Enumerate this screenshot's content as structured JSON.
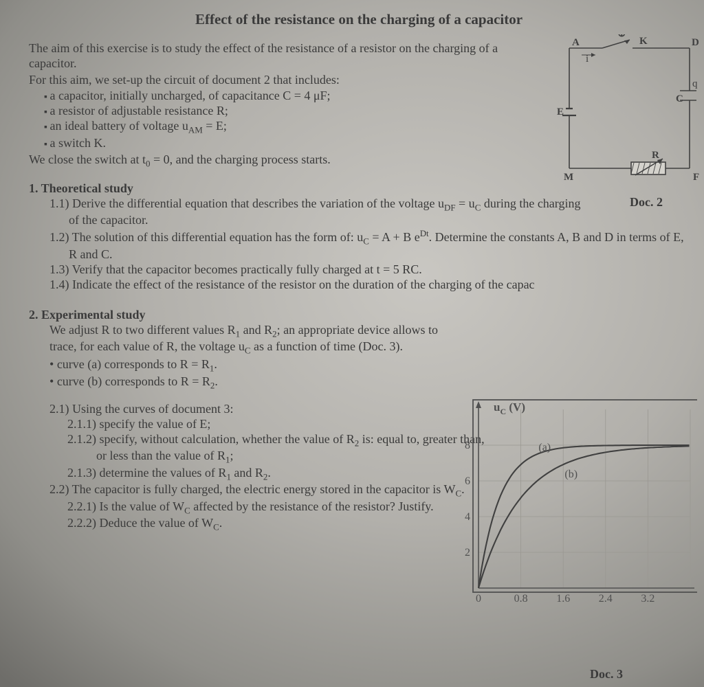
{
  "title": "Effect of the resistance on the charging of a capacitor",
  "intro_line1": "The aim of this exercise is to study the effect of the resistance of a resistor on the charging of a capacitor.",
  "intro_line2": "For this aim, we set-up the circuit of document 2 that includes:",
  "bullets": {
    "b1": "a capacitor, initially uncharged, of capacitance C = 4 μF;",
    "b2": "a resistor of adjustable resistance R;",
    "b3_pre": "an ideal battery of voltage u",
    "b3_sub": "AM",
    "b3_post": " = E;",
    "b4": "a switch K."
  },
  "close_pre": "We close the switch at t",
  "close_sub": "0",
  "close_post": " = 0, and the charging process starts.",
  "s1": {
    "head": "1.  Theoretical study",
    "i1_pre": "1.1)  Derive the differential equation that describes the variation of the voltage u",
    "i1_sub1": "DF",
    "i1_mid": " = u",
    "i1_sub2": "C",
    "i1_post": " during the charging of the capacitor.",
    "i2_pre": "1.2)  The solution of this differential equation has the form of: u",
    "i2_sub": "C",
    "i2_mid": " = A + B e",
    "i2_sup": "Dt",
    "i2_post": ". Determine the constants A, B and D in terms of E, R and C.",
    "i3": "1.3)  Verify that the capacitor becomes practically fully charged at t = 5 RC.",
    "i4": "1.4)  Indicate the effect of the resistance of the resistor on the duration of the charging of the capac"
  },
  "s2": {
    "head": "2.  Experimental study",
    "p1_pre": "We adjust R to two different values R",
    "p1_s1": "1",
    "p1_mid1": " and R",
    "p1_s2": "2",
    "p1_mid2": "; an appropriate device allows to trace, for each value of R, the voltage u",
    "p1_s3": "C",
    "p1_post": " as a function of time (Doc. 3).",
    "ca_pre": "curve (a) corresponds to R = R",
    "ca_sub": "1",
    "cb_pre": "curve (b) corresponds to R = R",
    "cb_sub": "2",
    "q21": "2.1) Using the curves of document 3:",
    "q211": "2.1.1)  specify the value of E;",
    "q212_pre": "2.1.2)  specify, without calculation, whether the value of R",
    "q212_s1": "2",
    "q212_mid": " is: equal to, greater than, or less than the value of R",
    "q212_s2": "1",
    "q212_post": ";",
    "q213_pre": "2.1.3)  determine the values of R",
    "q213_s1": "1",
    "q213_mid": " and R",
    "q213_s2": "2",
    "q213_post": ".",
    "q22_pre": "2.2)  The capacitor is fully charged, the electric energy stored in the capacitor is W",
    "q22_sub": "C",
    "q22_post": ".",
    "q221_pre": "2.2.1)  Is the value of W",
    "q221_sub": "C",
    "q221_post": " affected by the resistance of the resistor? Justify.",
    "q222_pre": "2.2.2)  Deduce the value of W",
    "q222_sub": "C",
    "q222_post": "."
  },
  "doc2": "Doc. 2",
  "doc3": "Doc. 3",
  "circuit": {
    "labels": {
      "A": "A",
      "D": "D",
      "K": "K",
      "E": "E",
      "C": "C",
      "q": "q",
      "M": "M",
      "R": "R",
      "F": "F",
      "i": "i",
      "plus": "⊕"
    },
    "stroke": "#404040",
    "width": 1.6
  },
  "graph": {
    "ylabel_pre": "u",
    "ylabel_sub": "C",
    "ylabel_post": " (V)",
    "label_a": "(a)",
    "label_b": "(b)",
    "yticks": [
      "2",
      "4",
      "6",
      "8"
    ],
    "xticks": [
      "0",
      "0.8",
      "1.6",
      "2.4",
      "3.2"
    ],
    "asymptote": 8,
    "ymax": 10,
    "xmax": 4,
    "border": "#505050",
    "grid": "#9a9892",
    "curve": "#404040",
    "curve_width": 2.1
  }
}
